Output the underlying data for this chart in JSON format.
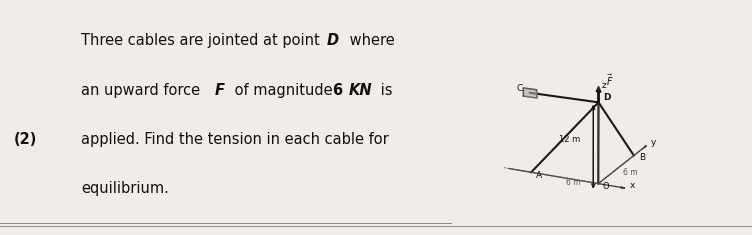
{
  "background_color": "#f0ede8",
  "cable_color": "#1a1a1a",
  "axis_color": "#333333",
  "dash_color": "#555555",
  "wall_color": "#aaaaaa",
  "text_color": "#111111",
  "fs_main": 10.5,
  "fs_diagram": 6.5,
  "line_sep_color": "#888888",
  "O": [
    0,
    0,
    0
  ],
  "D": [
    0,
    0,
    12
  ],
  "A": [
    -6,
    0,
    0
  ],
  "B": [
    0,
    6,
    0
  ],
  "C": [
    -6,
    0,
    12
  ],
  "xlim": [
    -9,
    3
  ],
  "ylim": [
    -1,
    9
  ],
  "zlim": [
    -1,
    15
  ],
  "elev": 18,
  "azim": -65
}
